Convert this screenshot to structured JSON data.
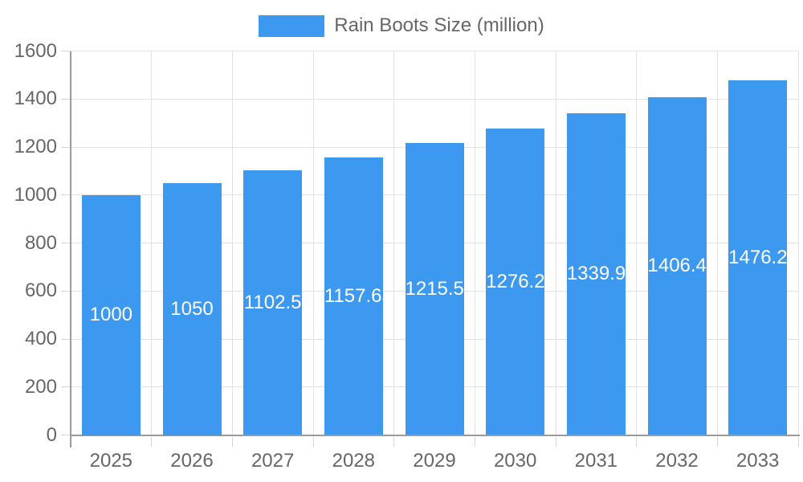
{
  "chart_data": {
    "type": "bar",
    "title": "",
    "legend_label": "Rain Boots Size (million)",
    "legend_position": "top",
    "categories": [
      "2025",
      "2026",
      "2027",
      "2028",
      "2029",
      "2030",
      "2031",
      "2032",
      "2033"
    ],
    "series": [
      {
        "name": "Rain Boots Size (million)",
        "values": [
          1000,
          1050,
          1102.5,
          1157.63,
          1215.51,
          1276.29,
          1339.95,
          1406.45,
          1476.27
        ],
        "value_labels": [
          "1000",
          "1050",
          "1102.5",
          "1157.63",
          "1215.51",
          "1276.29",
          "1339.95",
          "1406.45",
          "1476.27"
        ]
      }
    ],
    "xlabel": "",
    "ylabel": "",
    "ylim": [
      0,
      1600
    ],
    "yticks": [
      0,
      200,
      400,
      600,
      800,
      1000,
      1200,
      1400,
      1600
    ],
    "grid": true,
    "data_labels": "inside-center-white-clipped",
    "colors": {
      "bar": "#3D99F0",
      "axis_text": "#666666",
      "gridline": "#e3e3e3",
      "tick": "#d6d6d6",
      "axis_line": "#9a9a9a",
      "bar_label": "#ffffff",
      "background": "#ffffff"
    }
  }
}
